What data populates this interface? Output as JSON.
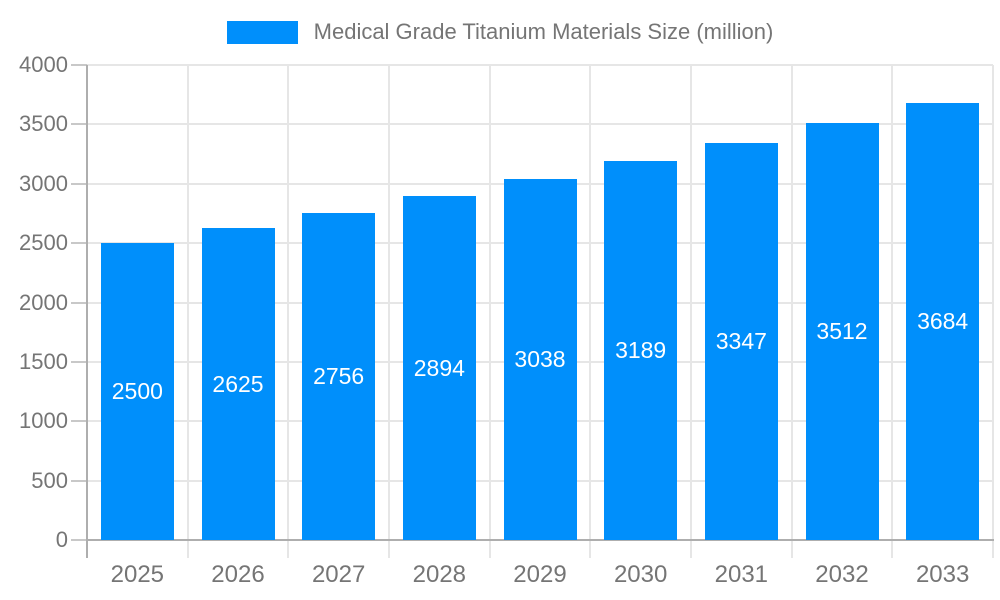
{
  "chart_data": {
    "type": "bar",
    "title": "Medical Grade Titanium Materials Size (million)",
    "categories": [
      "2025",
      "2026",
      "2027",
      "2028",
      "2029",
      "2030",
      "2031",
      "2032",
      "2033"
    ],
    "values": [
      2500,
      2625,
      2756,
      2894,
      3038,
      3189,
      3347,
      3512,
      3684
    ],
    "yticks": [
      0,
      500,
      1000,
      1500,
      2000,
      2500,
      3000,
      3500,
      4000
    ],
    "ylim": [
      0,
      4000
    ],
    "xlabel": "",
    "ylabel": "",
    "grid": "both",
    "legend_position": "top-center",
    "bar_value_labels_inside": true,
    "colors": {
      "bar": "#008ffb",
      "bar_value_text": "#ffffff",
      "grid_line": "#e6e6e6",
      "axis_line": "#aeaeae",
      "tick_line": "#c8c8c8",
      "axis_text": "#757575",
      "legend_text": "#757575",
      "background": "#ffffff"
    }
  }
}
